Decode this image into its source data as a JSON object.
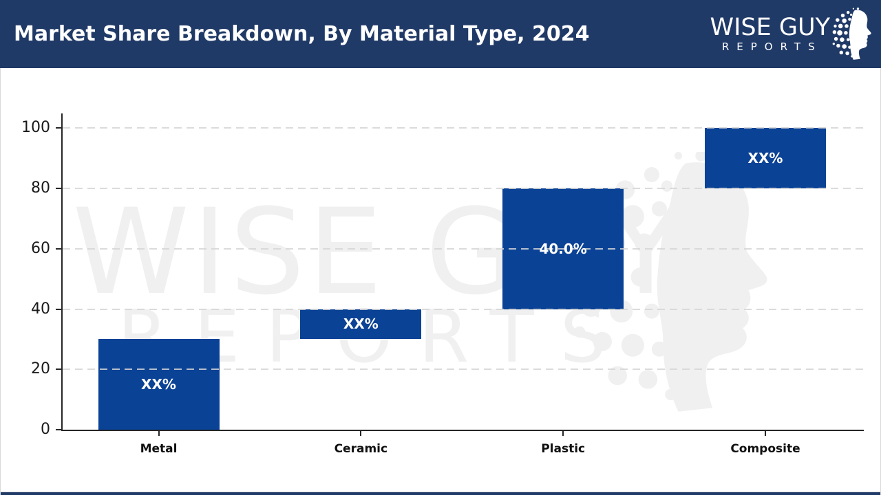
{
  "header": {
    "title": "Market Share Breakdown, By Material Type, 2024",
    "bg_color": "#203a67",
    "logo": {
      "line1": "WISE GUY",
      "line2": "REPORTS"
    }
  },
  "watermark": {
    "line1": "WISE GUY",
    "line2": "REPORTS"
  },
  "chart_data": {
    "type": "bar",
    "variant": "waterfall",
    "title": "Market Share Breakdown, By Material Type, 2024",
    "categories": [
      "Metal",
      "Ceramic",
      "Plastic",
      "Composite"
    ],
    "segments": [
      {
        "category": "Metal",
        "start": 0,
        "end": 30,
        "label": "XX%"
      },
      {
        "category": "Ceramic",
        "start": 30,
        "end": 40,
        "label": "XX%"
      },
      {
        "category": "Plastic",
        "start": 40,
        "end": 80,
        "label": "40.0%"
      },
      {
        "category": "Composite",
        "start": 80,
        "end": 100,
        "label": "XX%"
      }
    ],
    "yticks": [
      0,
      20,
      40,
      60,
      80,
      100
    ],
    "ylim": [
      0,
      105
    ],
    "xlabel": "",
    "ylabel": "",
    "grid": "horizontal dashed",
    "legend": "none",
    "bar_color": "#0a4296",
    "bar_label_color": "#ffffff",
    "axis_color": "#262626",
    "tick_label_color": "#1a1a1a",
    "grid_color": "#d5d5d5"
  }
}
